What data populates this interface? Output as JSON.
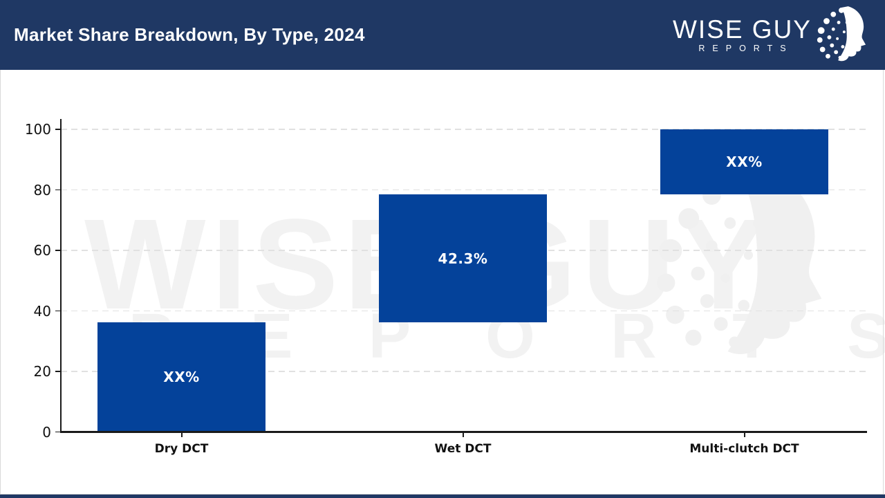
{
  "header": {
    "title": "Market Share Breakdown, By Type, 2024",
    "logo": {
      "line1": "WISE GUY",
      "line2": "REPORTS"
    }
  },
  "watermark": {
    "line1": "WISE GUY",
    "line2": "R E P O R T S"
  },
  "chart_data": {
    "type": "bar",
    "subtype": "waterfall-segments",
    "title": "Market Share Breakdown, By Type, 2024",
    "categories": [
      "Dry DCT",
      "Wet DCT",
      "Multi-clutch DCT"
    ],
    "segments": [
      {
        "category": "Dry DCT",
        "start": 0,
        "end": 36.2,
        "label": "XX%"
      },
      {
        "category": "Wet DCT",
        "start": 36.2,
        "end": 78.5,
        "label": "42.3%"
      },
      {
        "category": "Multi-clutch DCT",
        "start": 78.5,
        "end": 100,
        "label": "XX%"
      }
    ],
    "ylim": [
      0,
      100
    ],
    "yticks": [
      0,
      20,
      40,
      60,
      80,
      100
    ],
    "grid": "horizontal-dashed",
    "legend": "none",
    "bar_color": "#04429A",
    "bar_label_color": "#FFFFFF"
  },
  "colors": {
    "header_bg": "#1F3864",
    "footer_bg": "#1F3864",
    "bar": "#04429A",
    "axis": "#1A1A1A",
    "grid": "#E0E0E0",
    "watermark": "#F2F2F2",
    "tick_label": "#111111"
  }
}
